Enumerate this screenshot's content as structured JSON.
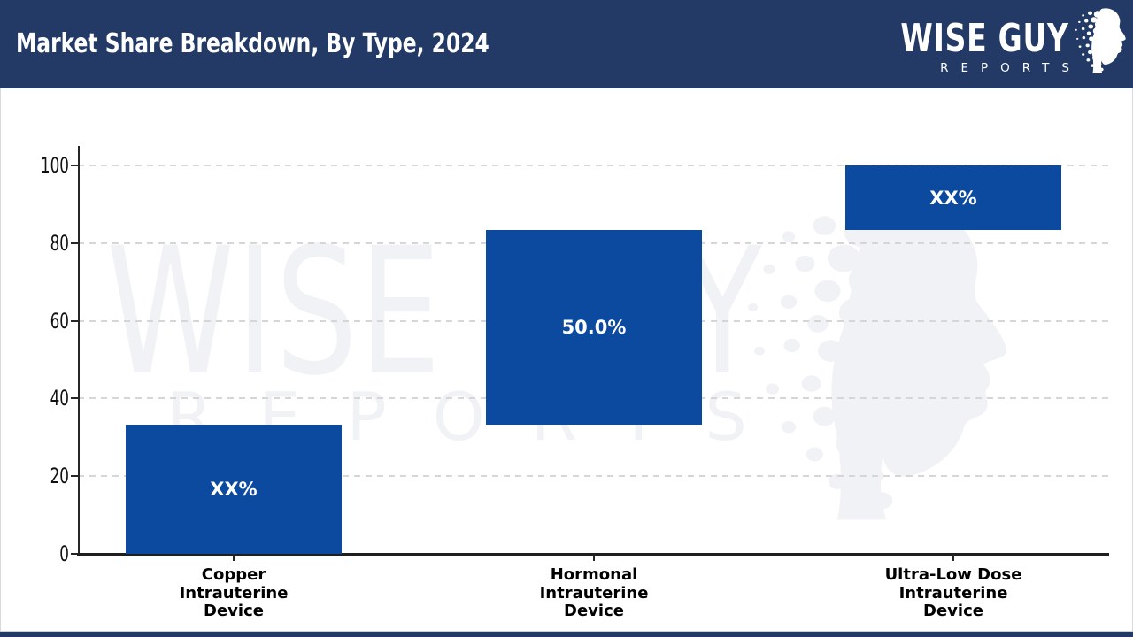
{
  "header": {
    "title": "Market Share Breakdown, By Type, 2024",
    "logo": {
      "name": "WISE GUY",
      "subtitle": "REPORTS"
    }
  },
  "watermark": {
    "name": "WISE GUY",
    "subtitle": "REPORTS"
  },
  "chart_data": {
    "type": "bar",
    "subtype": "waterfall",
    "title": "Market Share Breakdown, By Type, 2024",
    "categories": [
      "Copper Intrauterine Device",
      "Hormonal Intrauterine Device",
      "Ultra-Low Dose Intrauterine Device"
    ],
    "category_lines": [
      [
        "Copper",
        "Intrauterine",
        "Device"
      ],
      [
        "Hormonal",
        "Intrauterine",
        "Device"
      ],
      [
        "Ultra-Low Dose",
        "Intrauterine",
        "Device"
      ]
    ],
    "segments": [
      {
        "category": "Copper Intrauterine Device",
        "start": 0,
        "end": 33.3,
        "value_label": "XX%",
        "value_estimate": 33.3
      },
      {
        "category": "Hormonal Intrauterine Device",
        "start": 33.3,
        "end": 83.3,
        "value_label": "50.0%",
        "value_estimate": 50.0
      },
      {
        "category": "Ultra-Low Dose Intrauterine Device",
        "start": 83.3,
        "end": 100,
        "value_label": "XX%",
        "value_estimate": 16.7
      }
    ],
    "yticks": [
      0,
      20,
      40,
      60,
      80,
      100
    ],
    "ylim": [
      0,
      100
    ],
    "xlabel": "",
    "ylabel": "",
    "grid": "horizontal-dashed",
    "legend": "none",
    "bar_color": "#0c4aa0",
    "bar_label_color": "#ffffff"
  },
  "colors": {
    "header_bg": "#233966",
    "footer_bg": "#233966",
    "bar": "#0c4aa0",
    "grid": "#d6d6d6",
    "axis": "#262626",
    "watermark": "#f1f2f5"
  }
}
